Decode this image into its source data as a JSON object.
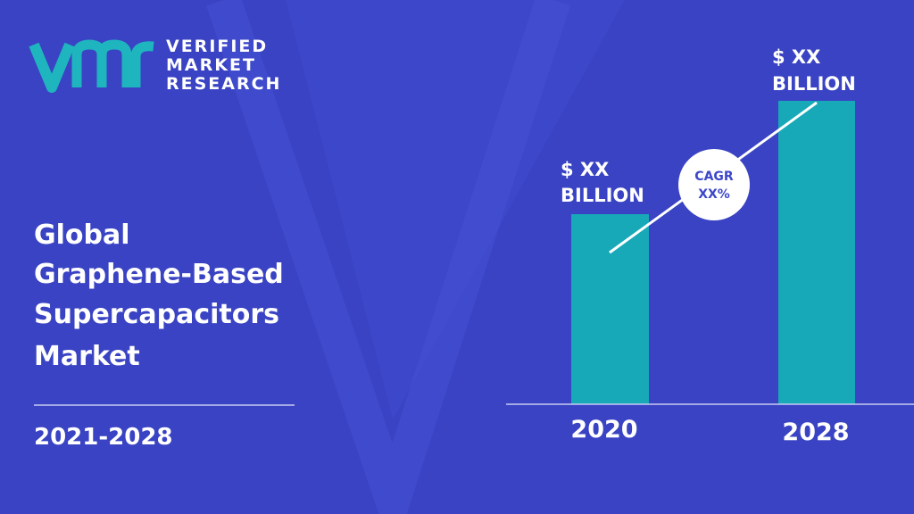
{
  "logo": {
    "lines": [
      "VERIFIED",
      "MARKET",
      "RESEARCH"
    ]
  },
  "title": {
    "lines": [
      "Global",
      "Graphene-Based",
      "Supercapacitors",
      "Market"
    ]
  },
  "period": "2021-2028",
  "chart": {
    "bars": [
      {
        "year": "2020",
        "label_lines": [
          "$ XX",
          "BILLION"
        ]
      },
      {
        "year": "2028",
        "label_lines": [
          "$ XX",
          "BILLION"
        ]
      }
    ],
    "cagr": {
      "lines": [
        "CAGR",
        "XX%"
      ]
    }
  }
}
